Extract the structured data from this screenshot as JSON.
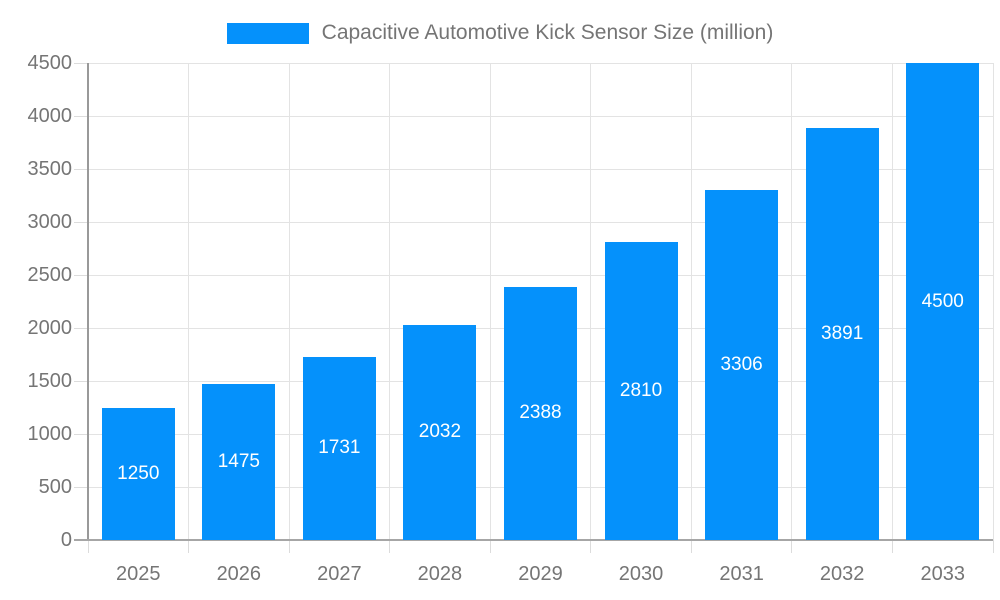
{
  "legend": {
    "label": "Capacitive Automotive Kick Sensor Size (million)"
  },
  "chart_data": {
    "type": "bar",
    "title": "Capacitive Automotive Kick Sensor Size (million)",
    "categories": [
      "2025",
      "2026",
      "2027",
      "2028",
      "2029",
      "2030",
      "2031",
      "2032",
      "2033"
    ],
    "values": [
      1250,
      1475,
      1731,
      2032,
      2388,
      2810,
      3306,
      3891,
      4500
    ],
    "xlabel": "",
    "ylabel": "",
    "ylim": [
      0,
      4500
    ],
    "ytick_step": 500,
    "ytick_labels": [
      "0",
      "500",
      "1000",
      "1500",
      "2000",
      "2500",
      "3000",
      "3500",
      "4000",
      "4500"
    ],
    "grid": true,
    "legend_position": "top",
    "value_labels_inside_bars": true,
    "colors": {
      "bar": "#0591FB",
      "value_label": "#FFFFFF",
      "axis_text": "#757575",
      "title_text": "#757575",
      "gridline": "#E3E3E3",
      "tick": "#DCDCDC",
      "axis_line": "#A6A6A6",
      "y_axis_line": "#999999",
      "background": "#FFFFFF"
    }
  }
}
